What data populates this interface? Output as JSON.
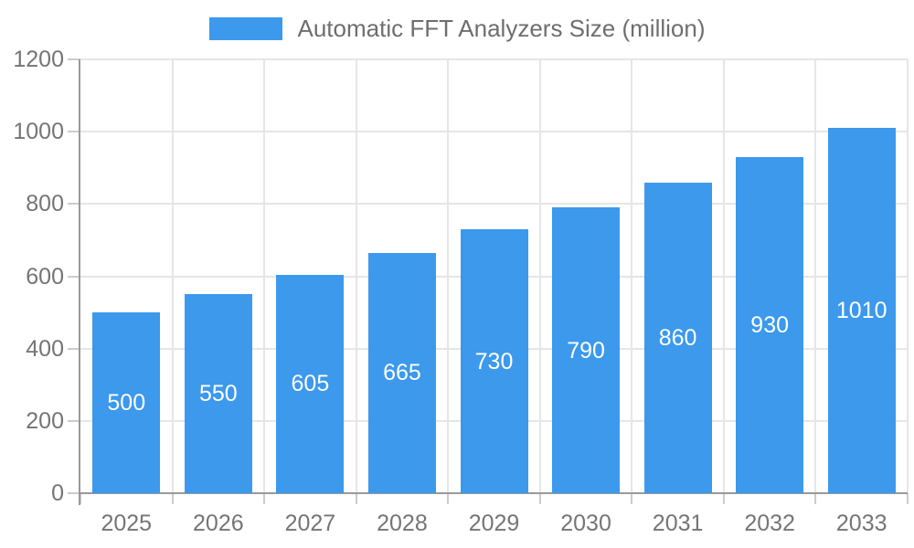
{
  "legend": {
    "label": "Automatic FFT Analyzers Size (million)"
  },
  "chart_data": {
    "type": "bar",
    "title": "",
    "series_name": "Automatic FFT Analyzers Size (million)",
    "categories": [
      "2025",
      "2026",
      "2027",
      "2028",
      "2029",
      "2030",
      "2031",
      "2032",
      "2033"
    ],
    "values": [
      500,
      550,
      605,
      665,
      730,
      790,
      860,
      930,
      1010
    ],
    "xlabel": "",
    "ylabel": "",
    "ylim": [
      0,
      1200
    ],
    "yticks": [
      0,
      200,
      400,
      600,
      800,
      1000,
      1200
    ],
    "grid": true,
    "legend_position": "top",
    "bar_value_labels_shown": true
  },
  "colors": {
    "bar": "#3C99EC",
    "grid": "#E6E6E6",
    "axis": "#999999",
    "tick": "#CCCCCC",
    "tick_label": "#757575",
    "legend_text": "#6E6E6E",
    "bar_label": "#FFFFFF",
    "background": "#FFFFFF"
  }
}
